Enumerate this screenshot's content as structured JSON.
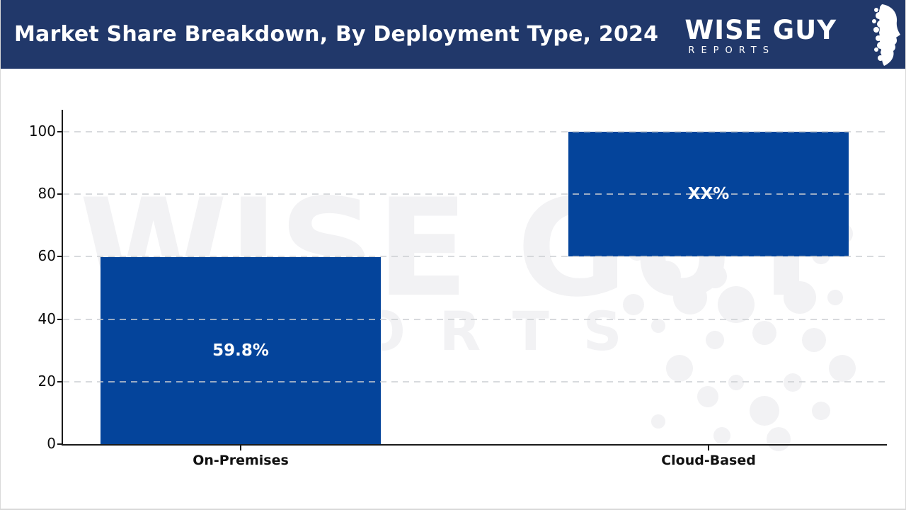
{
  "header": {
    "title": "Market Share Breakdown, By Deployment Type, 2024",
    "background": "#21386A",
    "logo": {
      "wordmark": "WISE GUY",
      "subtitle": "REPORTS"
    }
  },
  "watermark": {
    "wordmark": "WISE GUY",
    "subtitle": "REPORTS"
  },
  "chart_data": {
    "type": "bar",
    "style": "waterfall-stacked",
    "title": "Market Share Breakdown, By Deployment Type, 2024",
    "categories": [
      "On-Premises",
      "Cloud-Based"
    ],
    "bars": [
      {
        "category": "On-Premises",
        "label": "59.8%",
        "start": 0,
        "end": 59.8
      },
      {
        "category": "Cloud-Based",
        "label": "XX%",
        "start": 60,
        "end": 100
      }
    ],
    "xlabel": "",
    "ylabel": "",
    "yticks": [
      0,
      20,
      40,
      60,
      80,
      100
    ],
    "ylim": [
      0,
      107
    ],
    "bar_color": "#04449B",
    "grid": {
      "horizontal": true,
      "dashed": true,
      "color": "#d9dbde",
      "above_bars": true
    },
    "legend": null,
    "value_label_color": "#ffffff"
  }
}
